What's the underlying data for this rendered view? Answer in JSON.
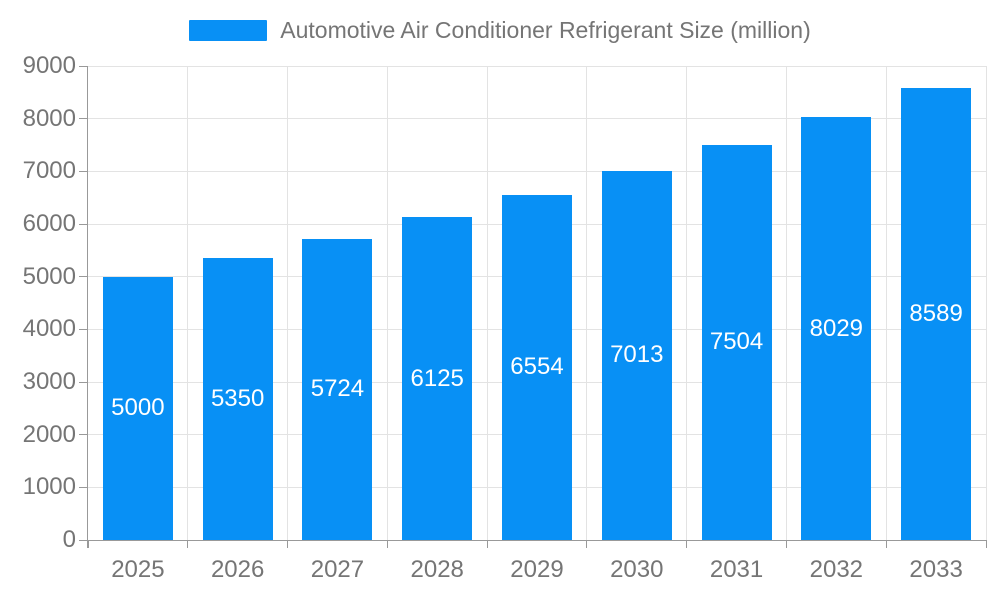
{
  "chart_data": {
    "type": "bar",
    "title": "Automotive Air Conditioner Refrigerant Size (million)",
    "legend": {
      "label": "Automotive Air Conditioner Refrigerant Size (million)",
      "position": "top-center"
    },
    "categories": [
      "2025",
      "2026",
      "2027",
      "2028",
      "2029",
      "2030",
      "2031",
      "2032",
      "2033"
    ],
    "values": [
      5000,
      5350,
      5724,
      6125,
      6554,
      7013,
      7504,
      8029,
      8589
    ],
    "xlabel": "",
    "ylabel": "",
    "ylim": [
      0,
      9000
    ],
    "y_ticks": [
      0,
      1000,
      2000,
      3000,
      4000,
      5000,
      6000,
      7000,
      8000,
      9000
    ],
    "grid": true,
    "bar_labels_inside": true,
    "colors": {
      "bar": "#0890F5",
      "bar_label_text": "#FFFFFF",
      "axis_text": "#757575",
      "grid_line": "#E3E3E3",
      "axis_line": "#999999",
      "background": "#FFFFFF"
    }
  }
}
